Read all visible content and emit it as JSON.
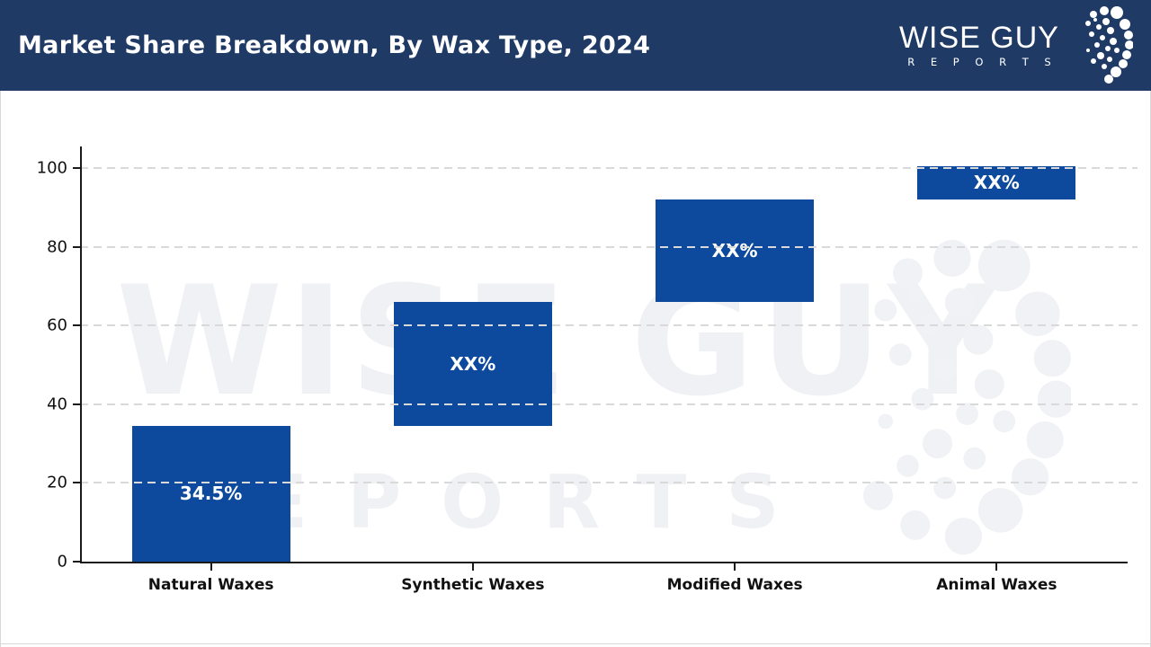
{
  "header": {
    "title": "Market Share Breakdown, By Wax Type, 2024",
    "logo": {
      "line1": "WISE GUY",
      "line2": "R E P O R T S"
    }
  },
  "watermark": {
    "line1": "WISE GUY",
    "line2": "REPORTS"
  },
  "chart_data": {
    "type": "bar",
    "subtype": "waterfall",
    "title": "Market Share Breakdown, By Wax Type, 2024",
    "categories": [
      "Natural Waxes",
      "Synthetic Waxes",
      "Modified Waxes",
      "Animal Waxes"
    ],
    "segments": [
      {
        "category": "Natural Waxes",
        "start": 0,
        "end": 34.5,
        "label": "34.5%"
      },
      {
        "category": "Synthetic Waxes",
        "start": 34.5,
        "end": 66,
        "label": "XX%"
      },
      {
        "category": "Modified Waxes",
        "start": 66,
        "end": 92,
        "label": "XX%"
      },
      {
        "category": "Animal Waxes",
        "start": 92,
        "end": 100.5,
        "label": "XX%"
      }
    ],
    "xlabel": "",
    "ylabel": "",
    "yticks": [
      0,
      20,
      40,
      60,
      80,
      100
    ],
    "ylim": [
      0,
      105.5
    ],
    "grid": "horizontal-dashed-above-bars",
    "legend": "none",
    "colors": {
      "bar": "#0d4a9e",
      "bar_label": "#ffffff",
      "grid": "#d9d9d9",
      "axis": "#1a1a1a",
      "header_bg": "#203a66",
      "watermark": "#f0f1f4"
    }
  }
}
